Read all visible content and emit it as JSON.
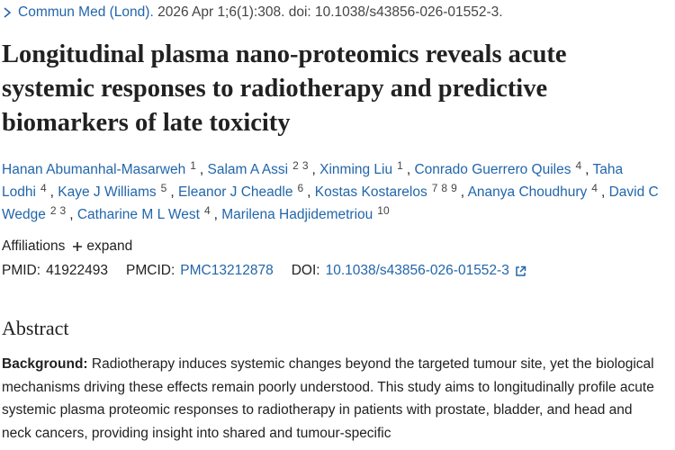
{
  "citation": {
    "journal": "Commun Med (Lond).",
    "details": "2026 Apr 1;6(1):308. doi: 10.1038/s43856-026-01552-3."
  },
  "title": "Longitudinal plasma nano-proteomics reveals acute systemic responses to radiotherapy and predictive biomarkers of late toxicity",
  "authors": [
    {
      "name": "Hanan Abumanhal-Masarweh",
      "affiliations": [
        1
      ]
    },
    {
      "name": "Salam A Assi",
      "affiliations": [
        2,
        3
      ]
    },
    {
      "name": "Xinming Liu",
      "affiliations": [
        1
      ]
    },
    {
      "name": "Conrado Guerrero Quiles",
      "affiliations": [
        4
      ]
    },
    {
      "name": "Taha Lodhi",
      "affiliations": [
        4
      ]
    },
    {
      "name": "Kaye J Williams",
      "affiliations": [
        5
      ]
    },
    {
      "name": "Eleanor J Cheadle",
      "affiliations": [
        6
      ]
    },
    {
      "name": "Kostas Kostarelos",
      "affiliations": [
        7,
        8,
        9
      ]
    },
    {
      "name": "Ananya Choudhury",
      "affiliations": [
        4
      ]
    },
    {
      "name": "David C Wedge",
      "affiliations": [
        2,
        3
      ]
    },
    {
      "name": "Catharine M L West",
      "affiliations": [
        4
      ]
    },
    {
      "name": "Marilena Hadjidemetriou",
      "affiliations": [
        10
      ]
    }
  ],
  "affiliations": {
    "label": "Affiliations",
    "toggle": "expand"
  },
  "identifiers": {
    "pmid_label": "PMID:",
    "pmid": "41922493",
    "pmcid_label": "PMCID:",
    "pmcid": "PMC13212878",
    "doi_label": "DOI:",
    "doi": "10.1038/s43856-026-01552-3"
  },
  "abstract": {
    "heading": "Abstract",
    "sections": [
      {
        "label": "Background:",
        "text": "Radiotherapy induces systemic changes beyond the targeted tumour site, yet the biological mechanisms driving these effects remain poorly understood. This study aims to longitudinally profile acute systemic plasma proteomic responses to radiotherapy in patients with prostate, bladder, and head and neck cancers, providing insight into shared and tumour-specific"
      }
    ]
  }
}
